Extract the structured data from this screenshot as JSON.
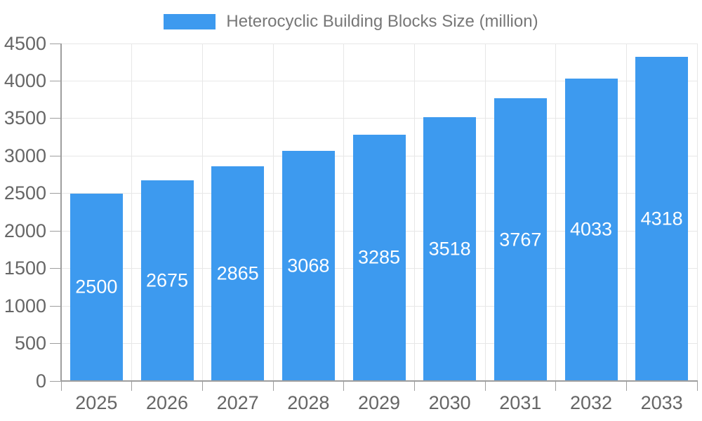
{
  "legend": {
    "label": "Heterocyclic Building Blocks Size (million)"
  },
  "colors": {
    "bar": "#3d9aef",
    "axis": "#9e9e9e",
    "grid": "#e7e7e7",
    "tick_label": "#666666",
    "legend_label": "#777777",
    "value_label": "#ffffff",
    "background": "#ffffff"
  },
  "chart_data": {
    "type": "bar",
    "title": "Heterocyclic Building Blocks Size (million)",
    "categories": [
      "2025",
      "2026",
      "2027",
      "2028",
      "2029",
      "2030",
      "2031",
      "2032",
      "2033"
    ],
    "values": [
      2500,
      2675,
      2865,
      3068,
      3285,
      3518,
      3767,
      4033,
      4318
    ],
    "xlabel": "",
    "ylabel": "",
    "ylim": [
      0,
      4500
    ],
    "yticks": [
      0,
      500,
      1000,
      1500,
      2000,
      2500,
      3000,
      3500,
      4000,
      4500
    ],
    "grid": true,
    "legend_position": "top",
    "value_label_position": "inside-center",
    "bar_color": "#3d9aef"
  }
}
